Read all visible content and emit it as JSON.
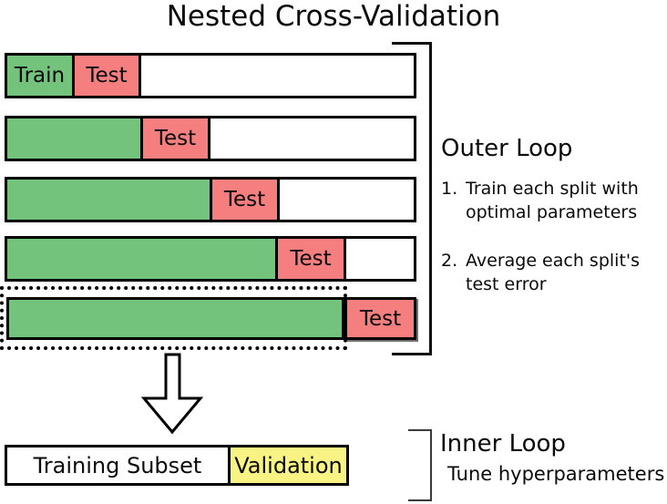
{
  "title": "Nested Cross-Validation",
  "colors": {
    "train": "#74c37c",
    "test": "#f57f7f",
    "validation": "#f8f383",
    "border": "#000000"
  },
  "splits": {
    "train_label": "Train",
    "test_label": "Test",
    "rows": [
      {
        "fold": 1,
        "train_w": 74,
        "test_w": 73,
        "show_train_label": true
      },
      {
        "fold": 2,
        "train_w": 149,
        "test_w": 74,
        "show_train_label": false
      },
      {
        "fold": 3,
        "train_w": 225,
        "test_w": 74,
        "show_train_label": false
      },
      {
        "fold": 4,
        "train_w": 297,
        "test_w": 75,
        "show_train_label": false
      }
    ],
    "highlighted": {
      "fold": 5,
      "train_w": 371,
      "test_w": 79
    }
  },
  "outer": {
    "label": "Outer Loop",
    "steps": [
      {
        "num": "1.",
        "line1": "Train each split with",
        "line2": "optimal parameters"
      },
      {
        "num": "2.",
        "line1": "Average each split's",
        "line2": "test error"
      }
    ]
  },
  "inner": {
    "label": "Inner Loop",
    "note": "Tune hyperparameters"
  },
  "subset": {
    "train_label": "Training Subset",
    "validation_label": "Validation"
  }
}
